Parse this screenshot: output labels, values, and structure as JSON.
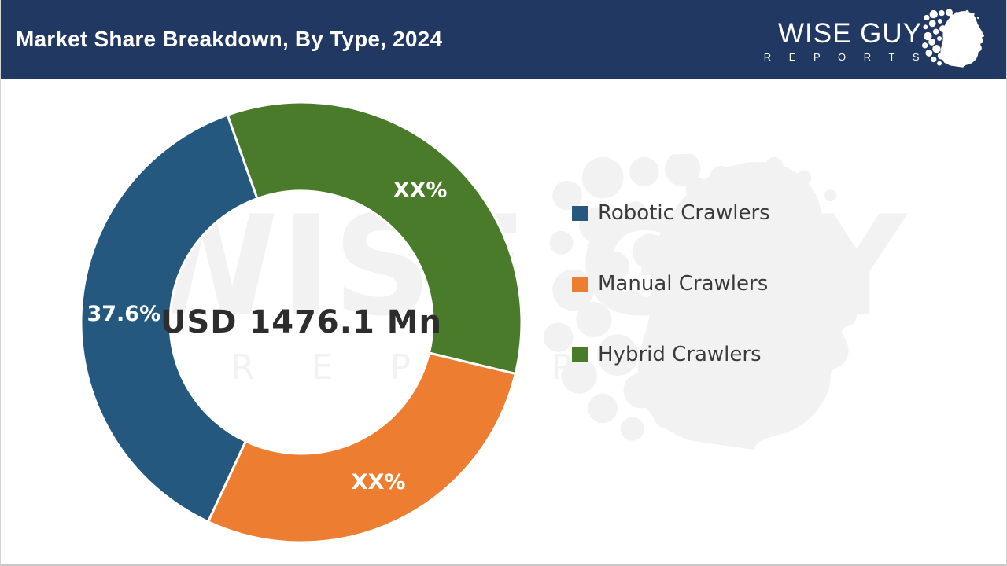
{
  "header": {
    "title": "Market Share Breakdown, By Type, 2024",
    "bg_color": "#213863",
    "logo": {
      "line1": "WISE GUY",
      "line2": "R E P O R T S"
    }
  },
  "watermark": {
    "line1": "WISE GUY",
    "line2": "REPORTS"
  },
  "chart_data": {
    "type": "pie",
    "subtype": "donut",
    "title": "Market Share Breakdown, By Type, 2024",
    "center_label": "USD 1476.1 Mn",
    "start_angle_deg_clockwise_from_top": -19.6,
    "clockwise_order": [
      "Hybrid Crawlers",
      "Manual Crawlers",
      "Robotic Crawlers"
    ],
    "segments": [
      {
        "name": "Robotic Crawlers",
        "value_pct": 37.6,
        "display_label": "37.6%",
        "color": "#24587E"
      },
      {
        "name": "Manual Crawlers",
        "value_pct": 28.2,
        "display_label": "XX%",
        "color": "#ED7D31"
      },
      {
        "name": "Hybrid Crawlers",
        "value_pct": 34.2,
        "display_label": "XX%",
        "color": "#4A7B2A"
      }
    ],
    "legend_position": "right",
    "notes": "values for Manual and Hybrid are masked as XX% in the image; arc sizes estimated from geometry"
  },
  "colors": {
    "header_navy": "#213863",
    "blue": "#24587E",
    "orange": "#ED7D31",
    "green": "#4A7B2A",
    "watermark_gray": "#f2f2f2",
    "text_dark": "#2d2d2d",
    "legend_text": "#3a3a3a"
  }
}
